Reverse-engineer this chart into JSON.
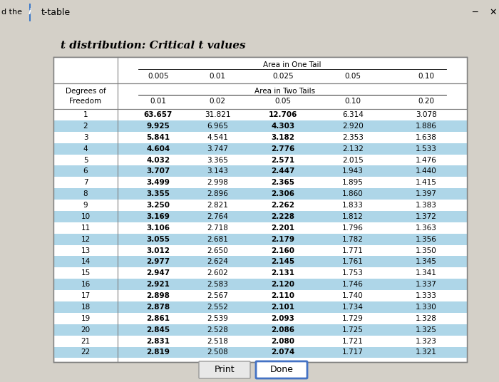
{
  "title": "t distribution: Critical t values",
  "window_title": "t-table",
  "header_one_tail": "Area in One Tail",
  "header_one_tail_vals": [
    "0.005",
    "0.01",
    "0.025",
    "0.05",
    "0.10"
  ],
  "header_two_tails": "Area in Two Tails",
  "header_two_tails_vals": [
    "0.01",
    "0.02",
    "0.05",
    "0.10",
    "0.20"
  ],
  "rows": [
    [
      1,
      "63.657",
      "31.821",
      "12.706",
      "6.314",
      "3.078"
    ],
    [
      2,
      "9.925",
      "6.965",
      "4.303",
      "2.920",
      "1.886"
    ],
    [
      3,
      "5.841",
      "4.541",
      "3.182",
      "2.353",
      "1.638"
    ],
    [
      4,
      "4.604",
      "3.747",
      "2.776",
      "2.132",
      "1.533"
    ],
    [
      5,
      "4.032",
      "3.365",
      "2.571",
      "2.015",
      "1.476"
    ],
    [
      6,
      "3.707",
      "3.143",
      "2.447",
      "1.943",
      "1.440"
    ],
    [
      7,
      "3.499",
      "2.998",
      "2.365",
      "1.895",
      "1.415"
    ],
    [
      8,
      "3.355",
      "2.896",
      "2.306",
      "1.860",
      "1.397"
    ],
    [
      9,
      "3.250",
      "2.821",
      "2.262",
      "1.833",
      "1.383"
    ],
    [
      10,
      "3.169",
      "2.764",
      "2.228",
      "1.812",
      "1.372"
    ],
    [
      11,
      "3.106",
      "2.718",
      "2.201",
      "1.796",
      "1.363"
    ],
    [
      12,
      "3.055",
      "2.681",
      "2.179",
      "1.782",
      "1.356"
    ],
    [
      13,
      "3.012",
      "2.650",
      "2.160",
      "1.771",
      "1.350"
    ],
    [
      14,
      "2.977",
      "2.624",
      "2.145",
      "1.761",
      "1.345"
    ],
    [
      15,
      "2.947",
      "2.602",
      "2.131",
      "1.753",
      "1.341"
    ],
    [
      16,
      "2.921",
      "2.583",
      "2.120",
      "1.746",
      "1.337"
    ],
    [
      17,
      "2.898",
      "2.567",
      "2.110",
      "1.740",
      "1.333"
    ],
    [
      18,
      "2.878",
      "2.552",
      "2.101",
      "1.734",
      "1.330"
    ],
    [
      19,
      "2.861",
      "2.539",
      "2.093",
      "1.729",
      "1.328"
    ],
    [
      20,
      "2.845",
      "2.528",
      "2.086",
      "1.725",
      "1.325"
    ],
    [
      21,
      "2.831",
      "2.518",
      "2.080",
      "1.721",
      "1.323"
    ],
    [
      22,
      "2.819",
      "2.508",
      "2.074",
      "1.717",
      "1.321"
    ]
  ],
  "row_color_even": "#aed6e8",
  "row_color_odd": "#ffffff",
  "window_bg": "#d4d0c8",
  "content_bg": "#ececec",
  "titlebar_bg": "#d4d0c8",
  "table_border": "#808080",
  "btn_border": "#4472c4"
}
